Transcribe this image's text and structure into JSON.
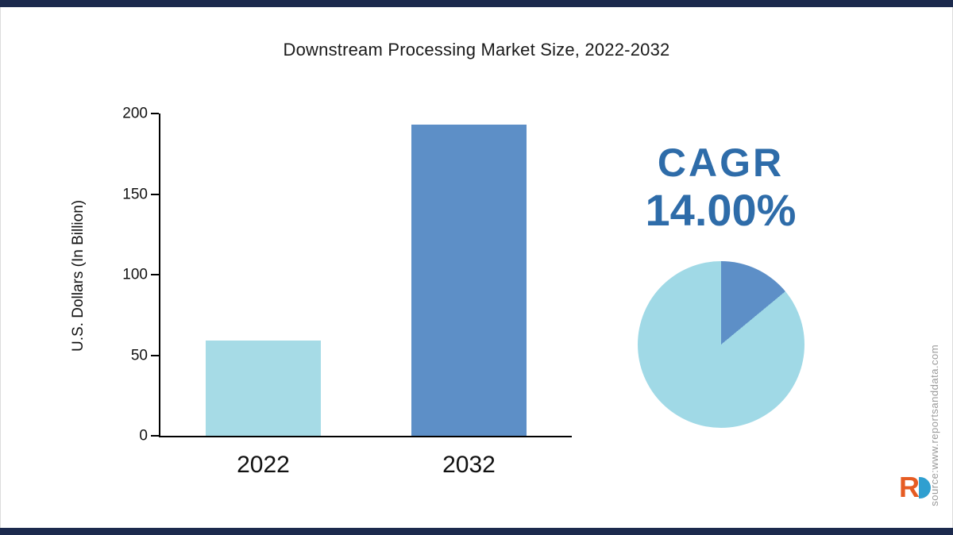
{
  "page": {
    "source_note": "source:www.reportsanddata.com",
    "accent_blue": "#2e6ca9",
    "strip_color": "#1c2a4d"
  },
  "chart_data": {
    "type": "bar",
    "title": "Downstream Processing Market Size, 2022-2032",
    "categories": [
      "2022",
      "2032"
    ],
    "values": [
      59,
      193
    ],
    "xlabel": "",
    "ylabel": "U.S. Dollars (In Billion)",
    "ylim": [
      0,
      200
    ],
    "yticks": [
      0,
      50,
      100,
      150,
      200
    ],
    "bar_colors": [
      "#a6dbe6",
      "#5d8fc7"
    ],
    "grid": false,
    "legend": false
  },
  "cagr": {
    "label": "CAGR",
    "value": "14.00%",
    "percent": 14
  },
  "pie": {
    "slice_percent": 14,
    "slice_color": "#5d8fc7",
    "remainder_color": "#a0d9e6"
  },
  "logo": {
    "text": "R"
  }
}
